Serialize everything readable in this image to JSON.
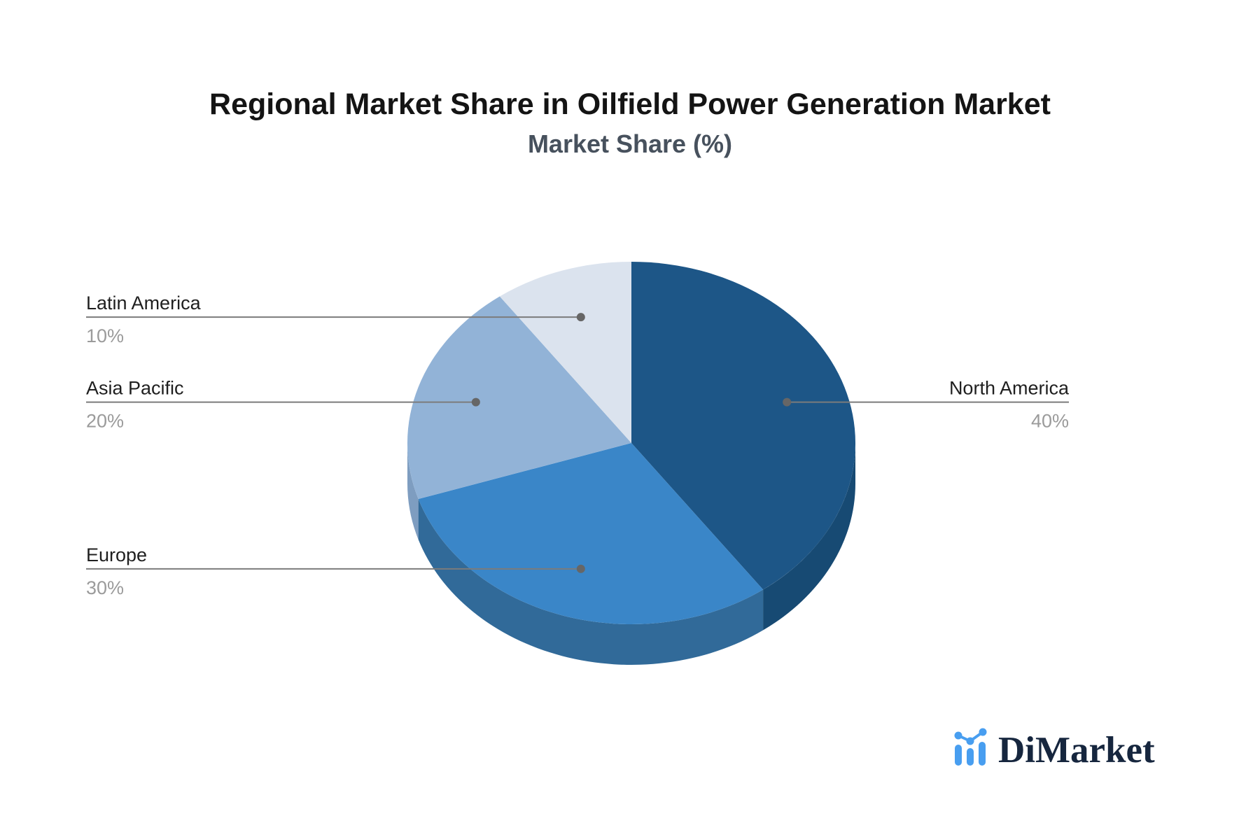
{
  "chart_data": {
    "type": "pie",
    "title": "Regional Market Share in Oilfield Power Generation Market",
    "subtitle": "Market Share (%)",
    "unit": "%",
    "start_angle": "top",
    "direction": "clockwise",
    "depth_3d": true,
    "legend_position": "callout-labels",
    "slices": [
      {
        "label": "North America",
        "value": 40,
        "pct_label": "40%",
        "color": "#1D5687",
        "side_color": "#174A73",
        "label_side": "right"
      },
      {
        "label": "Europe",
        "value": 30,
        "pct_label": "30%",
        "color": "#3A86C8",
        "side_color": "#316A99",
        "label_side": "left"
      },
      {
        "label": "Asia Pacific",
        "value": 20,
        "pct_label": "20%",
        "color": "#92B3D7",
        "side_color": "#7E9DC0",
        "label_side": "left"
      },
      {
        "label": "Latin America",
        "value": 10,
        "pct_label": "10%",
        "color": "#DBE3EE",
        "side_color": "#C5D0DF",
        "label_side": "left"
      }
    ]
  },
  "styles": {
    "background": "#FFFFFF",
    "title_color": "#141414",
    "subtitle_color": "#47515D",
    "label_color": "#1F1F1F",
    "pct_color": "#9B9B9B",
    "leader_line_color": "#7B7B7B",
    "leader_dot_color": "#666666"
  },
  "logo": {
    "text": "DiMarket",
    "icon": "bar-chart-trend-icon",
    "icon_color": "#489EF0",
    "text_color": "#16263E"
  }
}
